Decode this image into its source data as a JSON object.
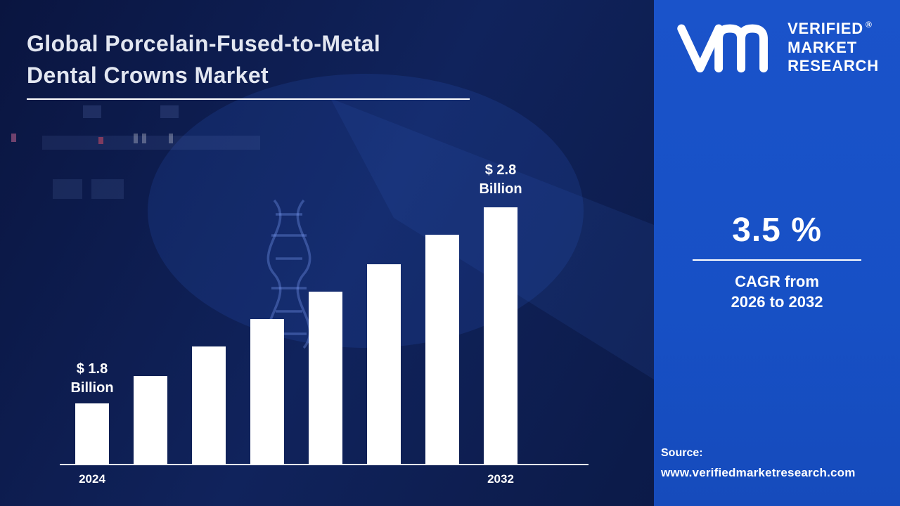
{
  "page": {
    "title_line1": "Global Porcelain-Fused-to-Metal",
    "title_line2": "Dental Crowns Market"
  },
  "brand": {
    "name_line1": "VERIFIED",
    "name_line2": "MARKET",
    "name_line3": "RESEARCH",
    "registered_mark": "®",
    "logo_icon": "vmr-monogram"
  },
  "stats": {
    "cagr_value": "3.5 %",
    "cagr_line1": "CAGR from",
    "cagr_line2": "2026 to 2032"
  },
  "source": {
    "label": "Source:",
    "url": "www.verifiedmarketresearch.com"
  },
  "colors": {
    "background_navy": "#0c1c4e",
    "panel_blue": "#1750c5",
    "bar_white": "#ffffff"
  },
  "chart_data": {
    "type": "bar",
    "title": "Global Porcelain-Fused-to-Metal Dental Crowns Market",
    "unit": "USD Billion",
    "categories": [
      "2024",
      "",
      "",
      "",
      "",
      "",
      "",
      "2032"
    ],
    "values": [
      1.8,
      1.94,
      2.09,
      2.23,
      2.37,
      2.51,
      2.66,
      2.8
    ],
    "x_tick_labels": [
      "2024",
      "2032"
    ],
    "first_bar_annotation": {
      "line1": "$ 1.8",
      "line2": "Billion"
    },
    "last_bar_annotation": {
      "line1": "$ 2.8",
      "line2": "Billion"
    },
    "ylim": [
      1.49,
      2.8
    ],
    "bar_color": "#ffffff",
    "grid": false,
    "legend": false
  }
}
